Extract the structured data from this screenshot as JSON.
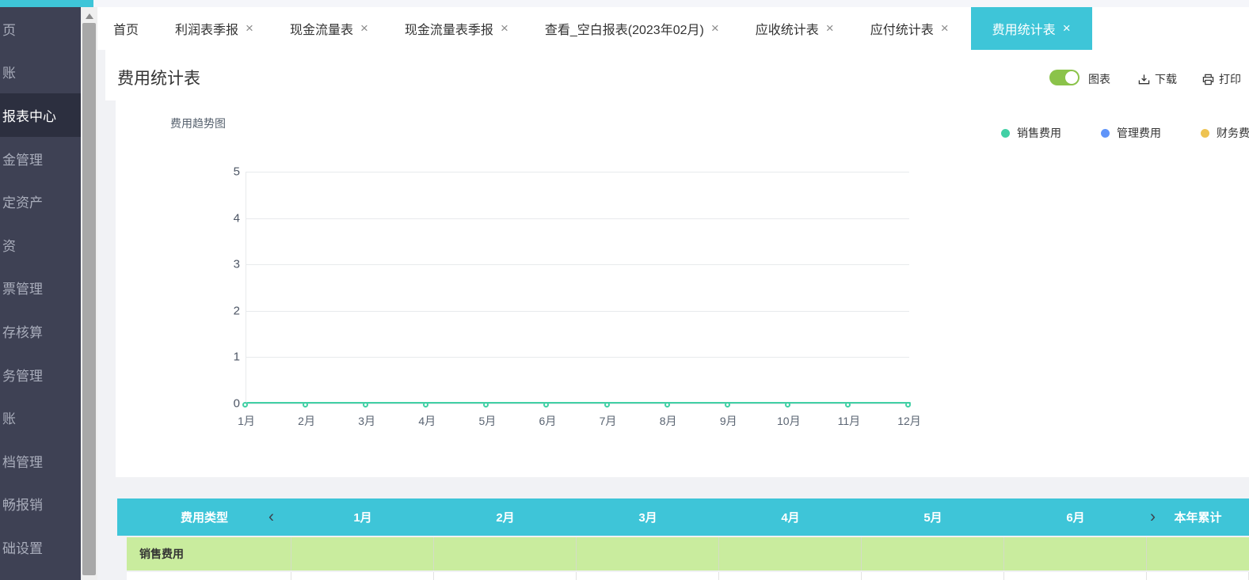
{
  "colors": {
    "accent_cyan": "#3ec5d8",
    "sidebar_bg": "#3e4154",
    "sidebar_active_bg": "#2c2f3f",
    "toggle_green": "#8bc34a",
    "row_green": "#c9ec9e",
    "series_teal": "#41d0a5",
    "series_blue": "#5f94f9",
    "series_yellow": "#eec351"
  },
  "sidebar": {
    "items": [
      {
        "label": "页",
        "active": false
      },
      {
        "label": "账",
        "active": false
      },
      {
        "label": "报表中心",
        "active": true
      },
      {
        "label": "金管理",
        "active": false
      },
      {
        "label": "定资产",
        "active": false
      },
      {
        "label": "资",
        "active": false
      },
      {
        "label": "票管理",
        "active": false
      },
      {
        "label": "存核算",
        "active": false
      },
      {
        "label": "务管理",
        "active": false
      },
      {
        "label": "账",
        "active": false
      },
      {
        "label": "档管理",
        "active": false
      },
      {
        "label": "畅报销",
        "active": false
      },
      {
        "label": "础设置",
        "active": false
      }
    ]
  },
  "tabs": {
    "close_glyph": "×",
    "items": [
      {
        "label": "首页",
        "closable": false,
        "active": false
      },
      {
        "label": "利润表季报",
        "closable": true,
        "active": false
      },
      {
        "label": "现金流量表",
        "closable": true,
        "active": false
      },
      {
        "label": "现金流量表季报",
        "closable": true,
        "active": false
      },
      {
        "label": "查看_空白报表(2023年02月)",
        "closable": true,
        "active": false
      },
      {
        "label": "应收统计表",
        "closable": true,
        "active": false
      },
      {
        "label": "应付统计表",
        "closable": true,
        "active": false
      },
      {
        "label": "费用统计表",
        "closable": true,
        "active": true
      }
    ]
  },
  "page": {
    "title": "费用统计表",
    "toolbar": {
      "toggle_on": true,
      "toggle_label": "图表",
      "download_label": "下载",
      "print_label": "打印"
    }
  },
  "chart_data": {
    "type": "line",
    "title": "费用趋势图",
    "categories": [
      "1月",
      "2月",
      "3月",
      "4月",
      "5月",
      "6月",
      "7月",
      "8月",
      "9月",
      "10月",
      "11月",
      "12月"
    ],
    "series": [
      {
        "name": "销售费用",
        "color": "#41d0a5",
        "values": [
          0,
          0,
          0,
          0,
          0,
          0,
          0,
          0,
          0,
          0,
          0,
          0
        ]
      },
      {
        "name": "管理费用",
        "color": "#5f94f9",
        "values": [
          0,
          0,
          0,
          0,
          0,
          0,
          0,
          0,
          0,
          0,
          0,
          0
        ]
      },
      {
        "name": "财务费用",
        "color": "#eec351",
        "values": [
          0,
          0,
          0,
          0,
          0,
          0,
          0,
          0,
          0,
          0,
          0,
          0
        ]
      }
    ],
    "ylim": [
      0,
      5
    ],
    "yticks": [
      0,
      1,
      2,
      3,
      4,
      5
    ],
    "grid": true,
    "legend_position": "top-right"
  },
  "table": {
    "prev_arrow": "‹",
    "next_arrow": "›",
    "columns": [
      "费用类型",
      "1月",
      "2月",
      "3月",
      "4月",
      "5月",
      "6月",
      "本年累计"
    ],
    "rows": [
      {
        "type": "销售费用",
        "cells": [
          "",
          "",
          "",
          "",
          "",
          "",
          ""
        ]
      }
    ]
  }
}
